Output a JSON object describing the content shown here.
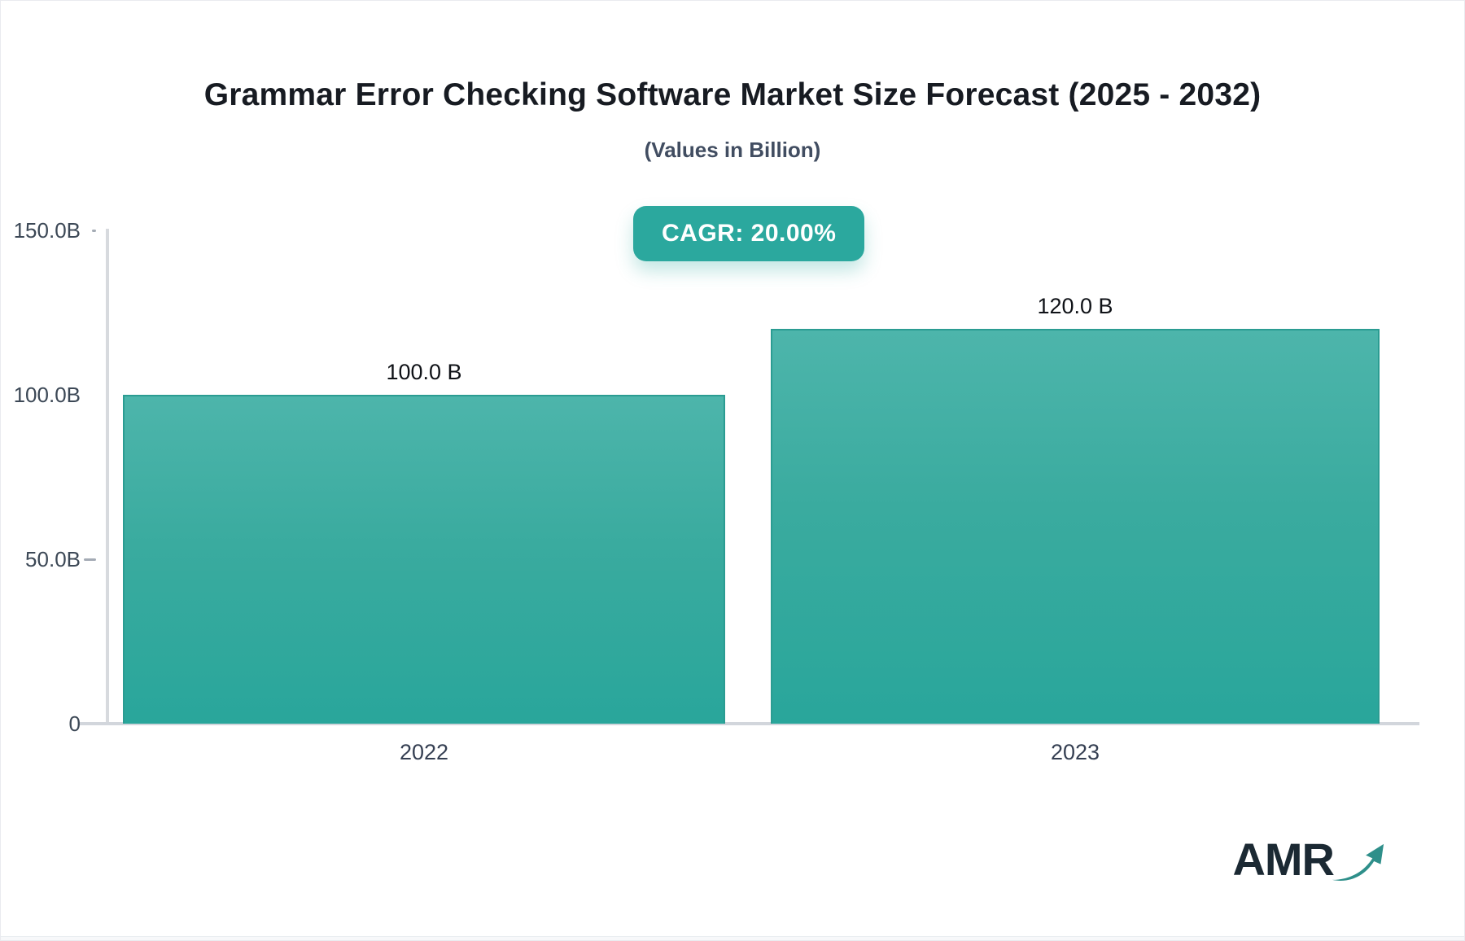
{
  "page": {
    "title": "Grammar Error Checking Software Market Size Forecast (2025 - 2032)",
    "subtitle": "(Values in Billion)",
    "cagr_badge": "CAGR: 20.00%",
    "logo_text": "AMR"
  },
  "colors": {
    "accent_teal": "#2BA89E",
    "bar_gradient_top": "#4DB5AB",
    "bar_gradient_bottom": "#29A69B",
    "bar_border": "#2B9C92",
    "axis_line": "#D5D9DE",
    "tick_mark": "#A4ABB5",
    "title_text": "#171B22",
    "subtitle_text": "#414D61",
    "axis_label_text": "#3C4856",
    "value_label_text": "#0F1217",
    "logo_text": "#1B2933",
    "logo_arrow": "#2E8F8A"
  },
  "chart_data": {
    "type": "bar",
    "title": "Grammar Error Checking Software Market Size Forecast (2025 - 2032)",
    "subtitle": "(Values in Billion)",
    "cagr_label": "CAGR: 20.00%",
    "categories": [
      "2022",
      "2023"
    ],
    "values": [
      100.0,
      120.0
    ],
    "value_labels": [
      "100.0 B",
      "120.0 B"
    ],
    "xlabel": "",
    "ylabel": "",
    "ylim": [
      0,
      150
    ],
    "yticks": [
      {
        "value": 150,
        "label": "150.0B"
      },
      {
        "value": 100,
        "label": "100.0B"
      },
      {
        "value": 50,
        "label": "50.0B"
      },
      {
        "value": 0,
        "label": "0"
      }
    ],
    "tick_marks": {
      "dash": [
        50,
        0
      ],
      "dot": [
        150
      ]
    },
    "grid": false,
    "legend": false
  }
}
